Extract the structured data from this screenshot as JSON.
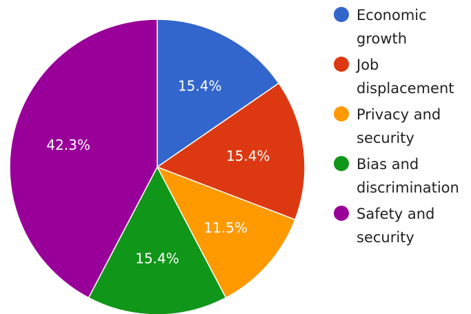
{
  "chart_data": {
    "type": "pie",
    "title": "",
    "categories": [
      "Economic growth",
      "Job displacement",
      "Privacy and security",
      "Bias and discrimination",
      "Safety and security"
    ],
    "values": [
      15.4,
      15.4,
      11.5,
      15.4,
      42.3
    ],
    "labels": [
      "15.4%",
      "15.4%",
      "11.5%",
      "15.4%",
      "42.3%"
    ],
    "colors": [
      "#3366cc",
      "#dc3912",
      "#ff9900",
      "#109618",
      "#990099"
    ],
    "legend_position": "right"
  },
  "legend": {
    "items": [
      {
        "label": "Economic growth",
        "color": "#3366cc"
      },
      {
        "label": "Job displacement",
        "color": "#dc3912"
      },
      {
        "label": "Privacy and security",
        "color": "#ff9900"
      },
      {
        "label": "Bias and discrimination",
        "color": "#109618"
      },
      {
        "label": "Safety and security",
        "color": "#990099"
      }
    ]
  }
}
